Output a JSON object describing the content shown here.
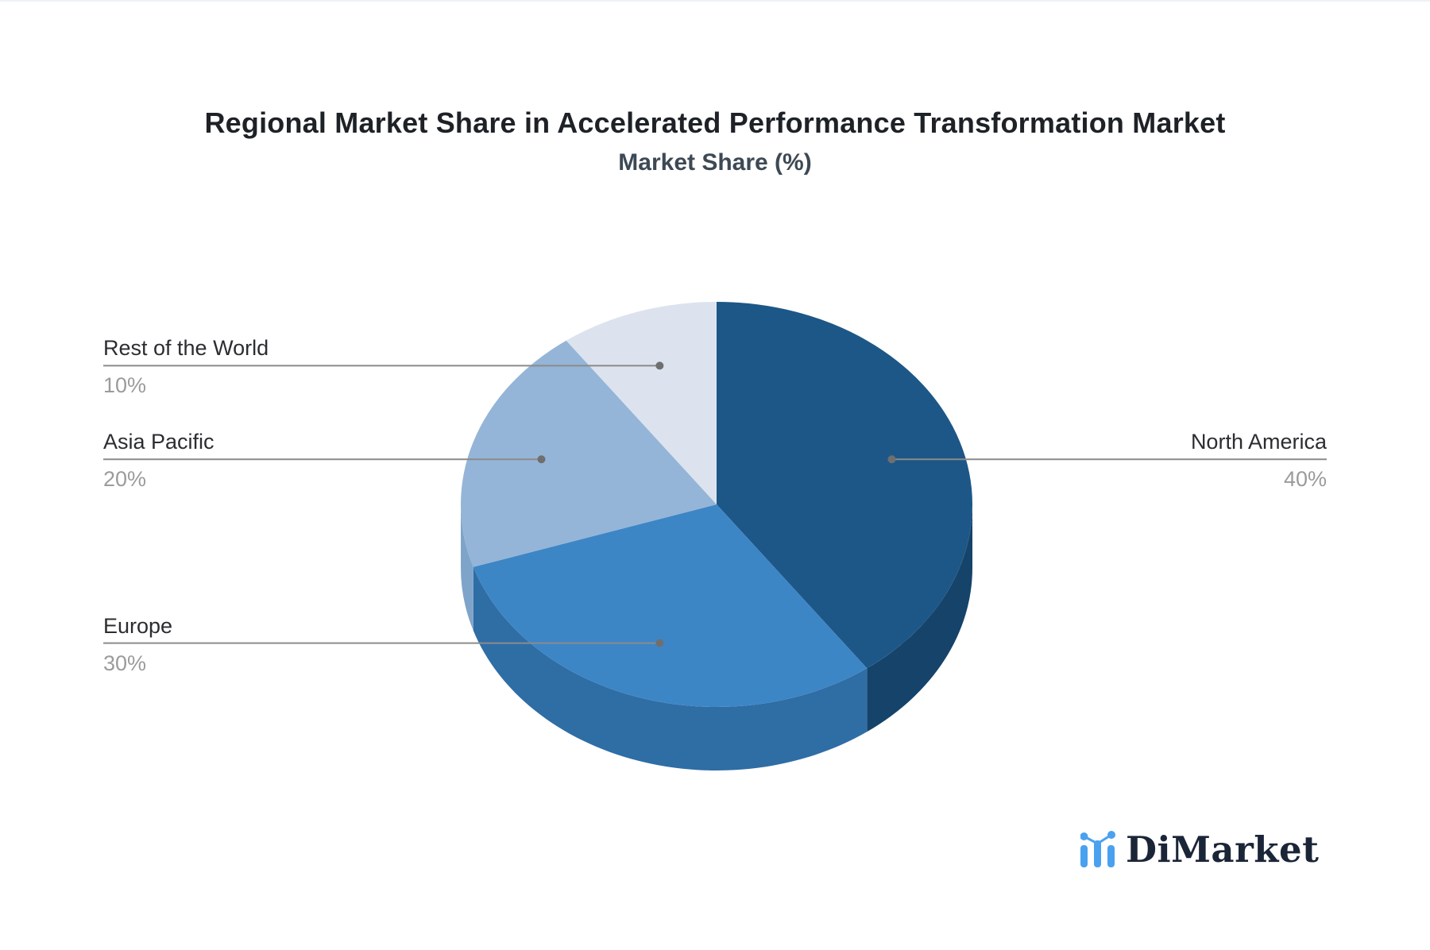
{
  "header": {
    "title": "Regional Market Share in Accelerated Performance Transformation Market",
    "subtitle": "Market Share (%)"
  },
  "chart_data": {
    "type": "pie",
    "style": "3d-extruded",
    "title": "Regional Market Share in Accelerated Performance Transformation Market",
    "subtitle": "Market Share (%)",
    "unit": "%",
    "direction": "clockwise",
    "start_angle_deg": 0,
    "legend_position": "callout-labels",
    "slices": [
      {
        "label": "North America",
        "value": 40,
        "display_value": "40%",
        "color": "#1d5787",
        "side_color": "#15436a",
        "callout_side": "right"
      },
      {
        "label": "Europe",
        "value": 30,
        "display_value": "30%",
        "color": "#3d86c6",
        "side_color": "#2f6da5",
        "callout_side": "left"
      },
      {
        "label": "Asia Pacific",
        "value": 20,
        "display_value": "20%",
        "color": "#94b5d7",
        "side_color": "#7fa4c9",
        "callout_side": "left"
      },
      {
        "label": "Rest of the World",
        "value": 10,
        "display_value": "10%",
        "color": "#dce3ee",
        "side_color": "#b9c6d8",
        "callout_side": "left"
      }
    ],
    "callout_line_color": "#8b8b8b",
    "callout_dot_color": "#6f6f6f",
    "label_text_color": "#2b2d30",
    "value_text_color": "#9b9b9b"
  },
  "brand": {
    "name": "DiMarket",
    "icon": "bar-line-chart-icon",
    "icon_color": "#4aa1ef",
    "text_color": "#1b2538"
  }
}
